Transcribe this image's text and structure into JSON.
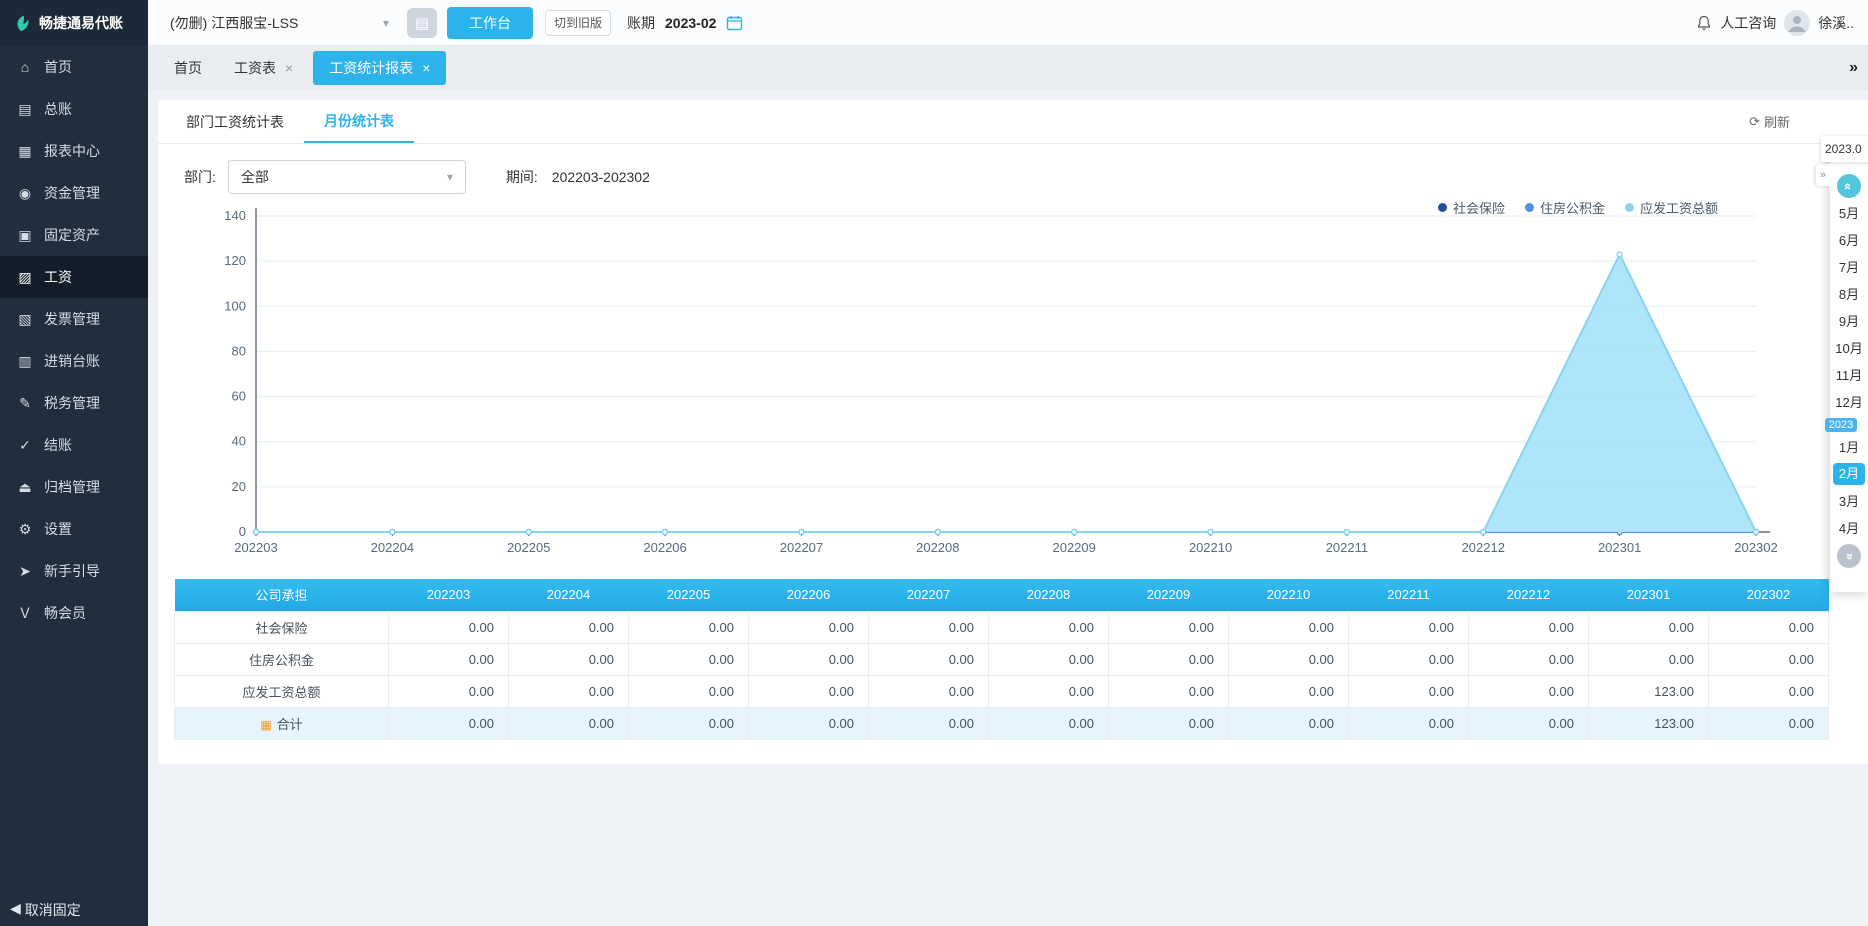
{
  "app": {
    "name": "畅捷通易代账",
    "pin_icon": "◀",
    "pin_label": "取消固定"
  },
  "sidebar": {
    "items": [
      {
        "key": "home",
        "icon": "⌂",
        "label": "首页",
        "active": false
      },
      {
        "key": "general-ledger",
        "icon": "▤",
        "label": "总账",
        "active": false
      },
      {
        "key": "report-center",
        "icon": "▦",
        "label": "报表中心",
        "active": false
      },
      {
        "key": "fund-management",
        "icon": "◉",
        "label": "资金管理",
        "active": false
      },
      {
        "key": "fixed-assets",
        "icon": "▣",
        "label": "固定资产",
        "active": false
      },
      {
        "key": "salary",
        "icon": "▨",
        "label": "工资",
        "active": true
      },
      {
        "key": "invoice-management",
        "icon": "▧",
        "label": "发票管理",
        "active": false
      },
      {
        "key": "purchase-sales-ledger",
        "icon": "▥",
        "label": "进销台账",
        "active": false
      },
      {
        "key": "tax-management",
        "icon": "✎",
        "label": "税务管理",
        "active": false
      },
      {
        "key": "closing",
        "icon": "✓",
        "label": "结账",
        "active": false
      },
      {
        "key": "archive-management",
        "icon": "⏏",
        "label": "归档管理",
        "active": false
      },
      {
        "key": "settings",
        "icon": "⚙",
        "label": "设置",
        "active": false
      },
      {
        "key": "beginner-guide",
        "icon": "➤",
        "label": "新手引导",
        "active": false
      },
      {
        "key": "member",
        "icon": "Ｖ",
        "label": "畅会员",
        "active": false
      }
    ]
  },
  "topbar": {
    "company": "(勿删) 江西服宝-LSS",
    "dropdown_icon": "▾",
    "memo_icon": "▤",
    "workbench_button": "工作台",
    "old_version_button": "切到旧版",
    "period_label": "账期",
    "period_value": "2023-02",
    "consult_label": "人工咨询",
    "user_name": "徐溪.."
  },
  "tab_bar": {
    "tabs": [
      {
        "label": "首页",
        "closable": false,
        "active": false
      },
      {
        "label": "工资表",
        "closable": true,
        "active": false
      },
      {
        "label": "工资统计报表",
        "closable": true,
        "active": true
      }
    ],
    "close_icon": "×",
    "overflow_icon": "»"
  },
  "report": {
    "tab_department": "部门工资统计表",
    "tab_month": "月份统计表",
    "refresh_icon": "⟳",
    "refresh_label": "刷新",
    "dept_label": "部门:",
    "dept_value": "全部",
    "dropdown_icon": "▾",
    "period_label": "期间:",
    "period_value": "202203-202302"
  },
  "chart_data": {
    "type": "area",
    "x": [
      "202203",
      "202204",
      "202205",
      "202206",
      "202207",
      "202208",
      "202209",
      "202210",
      "202211",
      "202212",
      "202301",
      "202302"
    ],
    "series": [
      {
        "name": "社会保险",
        "color": "#1e4f9e",
        "area": false,
        "values": [
          0,
          0,
          0,
          0,
          0,
          0,
          0,
          0,
          0,
          0,
          0,
          0
        ]
      },
      {
        "name": "住房公积金",
        "color": "#4f8fe6",
        "area": false,
        "values": [
          0,
          0,
          0,
          0,
          0,
          0,
          0,
          0,
          0,
          0,
          0,
          0
        ]
      },
      {
        "name": "应发工资总额",
        "color": "#86d4f3",
        "fill": "#abe4f8",
        "area": true,
        "values": [
          0,
          0,
          0,
          0,
          0,
          0,
          0,
          0,
          0,
          0,
          123,
          0
        ]
      }
    ],
    "ylim": [
      0,
      140
    ],
    "yticks": [
      0,
      20,
      40,
      60,
      80,
      100,
      120,
      140
    ],
    "grid": true,
    "legend_position": "top-right"
  },
  "table": {
    "sum_icon": "▦",
    "header": [
      "公司承担",
      "202203",
      "202204",
      "202205",
      "202206",
      "202207",
      "202208",
      "202209",
      "202210",
      "202211",
      "202212",
      "202301",
      "202302"
    ],
    "rows": [
      {
        "label": "社会保险",
        "total": false,
        "values": [
          "0.00",
          "0.00",
          "0.00",
          "0.00",
          "0.00",
          "0.00",
          "0.00",
          "0.00",
          "0.00",
          "0.00",
          "0.00",
          "0.00"
        ]
      },
      {
        "label": "住房公积金",
        "total": false,
        "values": [
          "0.00",
          "0.00",
          "0.00",
          "0.00",
          "0.00",
          "0.00",
          "0.00",
          "0.00",
          "0.00",
          "0.00",
          "0.00",
          "0.00"
        ]
      },
      {
        "label": "应发工资总额",
        "total": false,
        "values": [
          "0.00",
          "0.00",
          "0.00",
          "0.00",
          "0.00",
          "0.00",
          "0.00",
          "0.00",
          "0.00",
          "0.00",
          "123.00",
          "0.00"
        ]
      },
      {
        "label": "合计",
        "total": true,
        "values": [
          "0.00",
          "0.00",
          "0.00",
          "0.00",
          "0.00",
          "0.00",
          "0.00",
          "0.00",
          "0.00",
          "0.00",
          "123.00",
          "0.00"
        ]
      }
    ]
  },
  "month_panel": {
    "header_text": "2023.0",
    "collapse_icon": "»",
    "scroll_icon": "«",
    "months_top": [
      "5月",
      "6月",
      "7月",
      "8月",
      "9月",
      "10月",
      "11月",
      "12月"
    ],
    "year_badge": "2023",
    "months_bottom": [
      "1月",
      "2月",
      "3月",
      "4月"
    ],
    "active_month": "2月"
  },
  "colors": {
    "accent": "#2bb3ea",
    "sidebar_bg": "#202e3e",
    "table_header": "#2cb2ec",
    "area_fill": "#abe4f8"
  }
}
